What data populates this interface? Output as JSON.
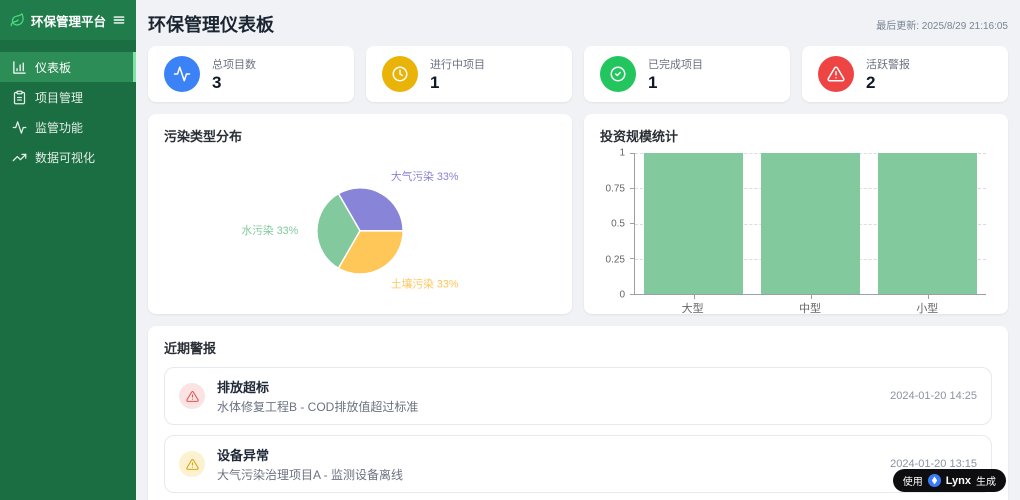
{
  "app": {
    "brand": "环保管理平台",
    "generator": {
      "prefix": "使用",
      "brand": "Lynx",
      "suffix": "生成"
    }
  },
  "sidebar": {
    "items": [
      {
        "id": "dashboard",
        "label": "仪表板",
        "icon": "bar-chart-icon",
        "active": true
      },
      {
        "id": "projects",
        "label": "项目管理",
        "icon": "clipboard-icon",
        "active": false
      },
      {
        "id": "supervision",
        "label": "监管功能",
        "icon": "activity-icon",
        "active": false
      },
      {
        "id": "visualization",
        "label": "数据可视化",
        "icon": "trending-up-icon",
        "active": false
      }
    ]
  },
  "header": {
    "title": "环保管理仪表板",
    "last_updated": "最后更新: 2025/8/29 21:16:05"
  },
  "stats": [
    {
      "label": "总项目数",
      "value": "3",
      "color": "#3b82f6",
      "icon": "activity-icon"
    },
    {
      "label": "进行中项目",
      "value": "1",
      "color": "#eab308",
      "icon": "clock-icon"
    },
    {
      "label": "已完成项目",
      "value": "1",
      "color": "#22c55e",
      "icon": "check-circle-icon"
    },
    {
      "label": "活跃警报",
      "value": "2",
      "color": "#ef4444",
      "icon": "alert-triangle-icon"
    }
  ],
  "chart_data": [
    {
      "type": "pie",
      "title": "污染类型分布",
      "slices": [
        {
          "label": "大气污染",
          "value": 33,
          "color": "#8884d8"
        },
        {
          "label": "水污染",
          "value": 33,
          "color": "#82ca9d"
        },
        {
          "label": "土壤污染",
          "value": 33,
          "color": "#ffc658"
        }
      ],
      "label_suffix": "%"
    },
    {
      "type": "bar",
      "title": "投资规模统计",
      "categories": [
        "大型",
        "中型",
        "小型"
      ],
      "values": [
        1,
        1,
        1
      ],
      "ylim": [
        0,
        1
      ],
      "yticks": [
        "0",
        "0.25",
        "0.5",
        "0.75",
        "1"
      ],
      "bar_color": "#82ca9d",
      "grid": "dashed"
    }
  ],
  "alerts": {
    "title": "近期警报",
    "items": [
      {
        "title": "排放超标",
        "desc": "水体修复工程B - COD排放值超过标准",
        "time": "2024-01-20 14:25",
        "icon": "alert-triangle-icon",
        "icon_bg": "#fbe3e3",
        "icon_color": "#e25555"
      },
      {
        "title": "设备异常",
        "desc": "大气污染治理项目A - 监测设备离线",
        "time": "2024-01-20 13:15",
        "icon": "alert-triangle-icon",
        "icon_bg": "#fcf2cf",
        "icon_color": "#d9a414"
      }
    ]
  }
}
